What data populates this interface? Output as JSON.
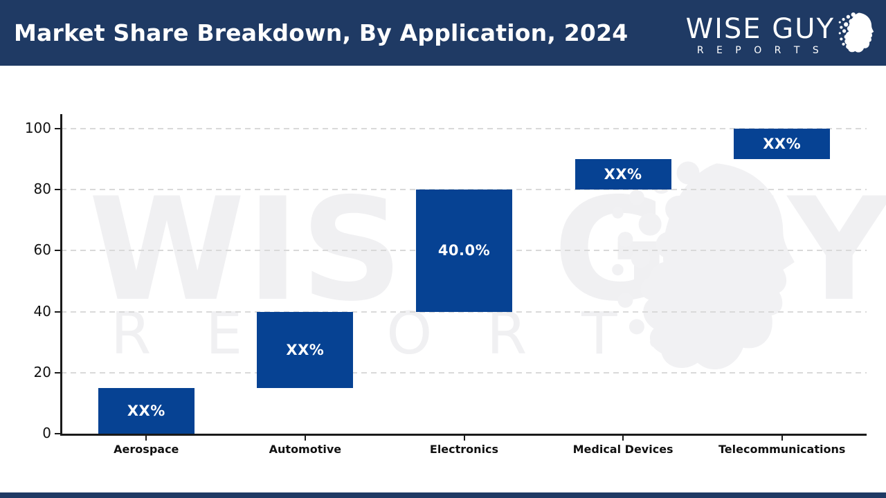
{
  "header": {
    "title": "Market Share Breakdown, By Application, 2024",
    "logo": {
      "wordmark": "WISE GUY",
      "subtext": "R E P O R T S"
    }
  },
  "watermark": {
    "line1": "WISE GUY",
    "line2": "R E P O R T S"
  },
  "colors": {
    "header_bg": "#1f3a64",
    "footer_bg": "#1f3a64",
    "bar_fill": "#064293",
    "bar_label_text": "#ffffff",
    "gridline": "#d9d9d9",
    "axis": "#1a1a1a",
    "watermark": "#f0f0f2"
  },
  "chart_data": {
    "type": "bar",
    "variant": "floating-waterfall",
    "title": "Market Share Breakdown, By Application, 2024",
    "categories": [
      "Aerospace",
      "Automotive",
      "Electronics",
      "Medical Devices",
      "Telecommunications"
    ],
    "segments": [
      {
        "category": "Aerospace",
        "start": 0,
        "end": 15,
        "label": "XX%"
      },
      {
        "category": "Automotive",
        "start": 15,
        "end": 40,
        "label": "XX%"
      },
      {
        "category": "Electronics",
        "start": 40,
        "end": 80,
        "label": "40.0%"
      },
      {
        "category": "Medical Devices",
        "start": 80,
        "end": 90,
        "label": "XX%"
      },
      {
        "category": "Telecommunications",
        "start": 90,
        "end": 100,
        "label": "XX%"
      }
    ],
    "xlabel": "",
    "ylabel": "",
    "y_ticks": [
      0,
      20,
      40,
      60,
      80,
      100
    ],
    "ylim": [
      0,
      105
    ],
    "grid": "horizontal-dashed",
    "legend": "none"
  }
}
